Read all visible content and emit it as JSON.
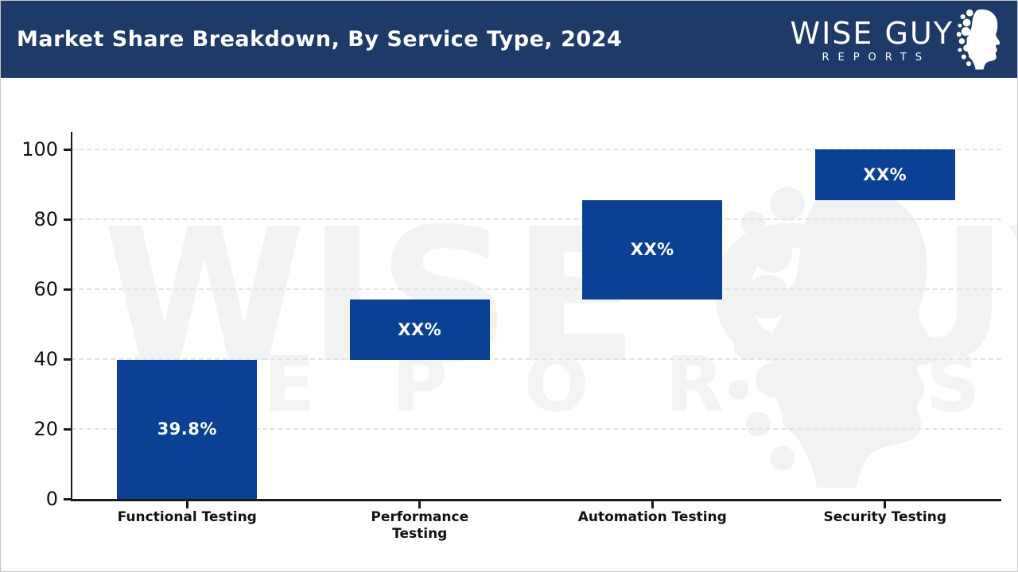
{
  "header": {
    "title": "Market Share Breakdown, By Service Type, 2024",
    "bg_color": "#1e3a68",
    "logo": {
      "line1": "WISE GUY",
      "line2": "REPORTS"
    }
  },
  "watermark": {
    "line1": "WISE GUY",
    "line2": "REPORTS"
  },
  "chart_data": {
    "type": "bar",
    "subtype": "waterfall-stacked-percentage",
    "title": "Market Share Breakdown, By Service Type, 2024",
    "categories": [
      "Functional Testing",
      "Performance Testing",
      "Automation Testing",
      "Security Testing"
    ],
    "category_lines": [
      [
        "Functional Testing"
      ],
      [
        "Performance",
        "Testing"
      ],
      [
        "Automation Testing"
      ],
      [
        "Security Testing"
      ]
    ],
    "bars": [
      {
        "category": "Functional Testing",
        "start": 0,
        "end": 39.8,
        "label": "39.8%"
      },
      {
        "category": "Performance Testing",
        "start": 39.8,
        "end": 57,
        "label": "XX%"
      },
      {
        "category": "Automation Testing",
        "start": 57,
        "end": 85.5,
        "label": "XX%"
      },
      {
        "category": "Security Testing",
        "start": 85.5,
        "end": 100,
        "label": "XX%"
      }
    ],
    "y_ticks": [
      0,
      20,
      40,
      60,
      80,
      100
    ],
    "ylim": [
      0,
      100
    ],
    "bar_color": "#0b4194",
    "axis_color": "#1a1a1a",
    "gridline_style": "dashed",
    "legend": "none"
  }
}
